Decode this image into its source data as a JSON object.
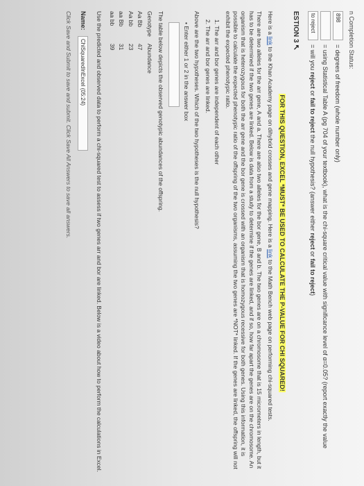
{
  "status": "n Completion Status:",
  "rows": {
    "df": {
      "cell": "898",
      "label": "= degrees of freedom (whole number only)"
    },
    "crit": {
      "cell": "",
      "label": "= using Statistical Table A (pg 704 of your textbook), what is the chi-square critical value with significance level of α=0.05? (report exactly the value"
    },
    "reject": {
      "cell": "to reject",
      "label": "= will you reject or fail to reject the null hypothesis? (answer either reject or fail to reject)"
    }
  },
  "question_head": "ESTION 3",
  "highlight_line": "FOR THIS QUESTION, EXCEL *MUST* BE USED TO CALCULATE THE P-VALUE FOR CHI SQUARED!",
  "para1a": "Here is a ",
  "para1_link1": "link",
  "para1b": " to the Khan Academy page on dihybrid crosses and gene mapping. Here is a ",
  "para1_link2": "link",
  "para1c": " to the Math Bench web page on performing chi-squared tests.",
  "para2": "There are two alleles for the arr gene, A and a. There are also two alleles for the bor gene, B and b. The two genes are on a chromosome that is 15 micrometers in length, but it has to be determined if the two genes are linked. Below is data from a study to determine if the genes are linked, and if so, how far apart the genes are on the chromosome. An organism that is heterozygous for both the arr gene and the bor gene is crossed with an organism that is homozygous recessive for both genes. Using this information, it is possible to calculate the expected phenotypic ratio of the offspring of the two organisms, assuming the two genes are *NOT* linked. If the genes are linked, the offspring will not exhibit the expected phenotypic ratio.",
  "hyp1": "1. The arr and bor genes are independent of each other",
  "hyp2": "2. The arr and bor genes are linked.",
  "hyp_q": "Above are the two hypotheses. Which of the two hypotheses is the null hypothesis?",
  "bullet": "• Enter either 1 or 2 in the answer box",
  "table_caption": "The table below depicts the observed genotypic abundances of the offspring.",
  "geno_header1": "Genotype",
  "geno_header2": "Abundance",
  "geno": [
    {
      "g": "Aa Bb",
      "n": "47"
    },
    {
      "g": "Aa bb",
      "n": "23"
    },
    {
      "g": "aa Bb",
      "n": "31"
    },
    {
      "g": "aa bb",
      "n": "39"
    }
  ],
  "instr": "Use the predicted and observed data to perform a chi-squared test to assess if two genes arr and bor are linked. Below is a video about how to perform the calculations in Excel.",
  "name_label": "Name:",
  "name_value": "ChiSquaredInExcel (05:24)",
  "footer": "Click Save and Submit to save and submit. Click Save All Answers to save all answers."
}
